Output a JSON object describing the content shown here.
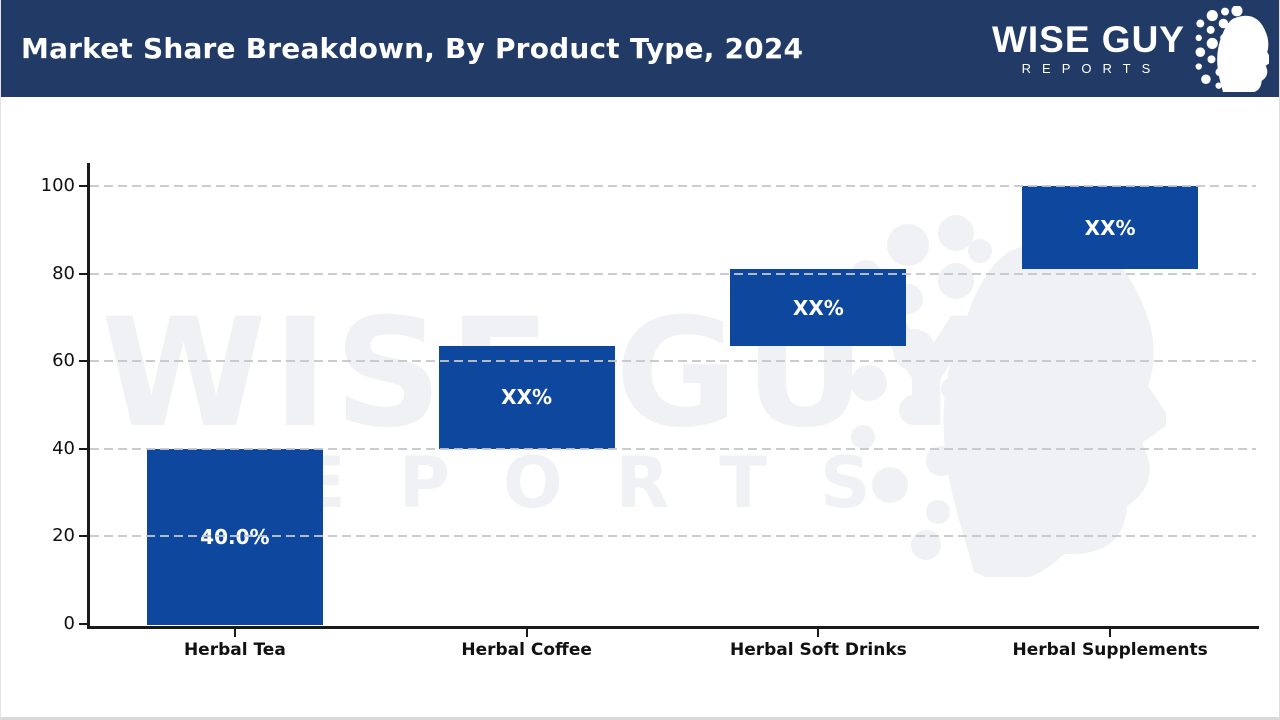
{
  "header": {
    "title": "Market Share Breakdown, By Product Type, 2024",
    "brand": {
      "line1": "WISE GUY",
      "line2": "REPORTS"
    },
    "bg_color": "#213A66"
  },
  "watermark": {
    "line1": "WISE GUY",
    "line2": "REPORTS"
  },
  "chart_data": {
    "type": "bar",
    "subtype": "waterfall",
    "title": "Market Share Breakdown, By Product Type, 2024",
    "categories": [
      "Herbal Tea",
      "Herbal Coffee",
      "Herbal Soft Drinks",
      "Herbal Supplements"
    ],
    "segments": [
      {
        "category": "Herbal Tea",
        "start": 0,
        "end": 40,
        "label": "40.0%"
      },
      {
        "category": "Herbal Coffee",
        "start": 40,
        "end": 63.5,
        "label": "XX%"
      },
      {
        "category": "Herbal Soft Drinks",
        "start": 63.5,
        "end": 81,
        "label": "XX%"
      },
      {
        "category": "Herbal Supplements",
        "start": 81,
        "end": 100,
        "label": "XX%"
      }
    ],
    "y_ticks": [
      0,
      20,
      40,
      60,
      80,
      100
    ],
    "ylim": [
      0,
      105
    ],
    "xlabel": "",
    "ylabel": "",
    "bar_color": "#0D489E",
    "grid": "horizontal-dashed",
    "grid_over_bars": true,
    "legend": "none"
  }
}
